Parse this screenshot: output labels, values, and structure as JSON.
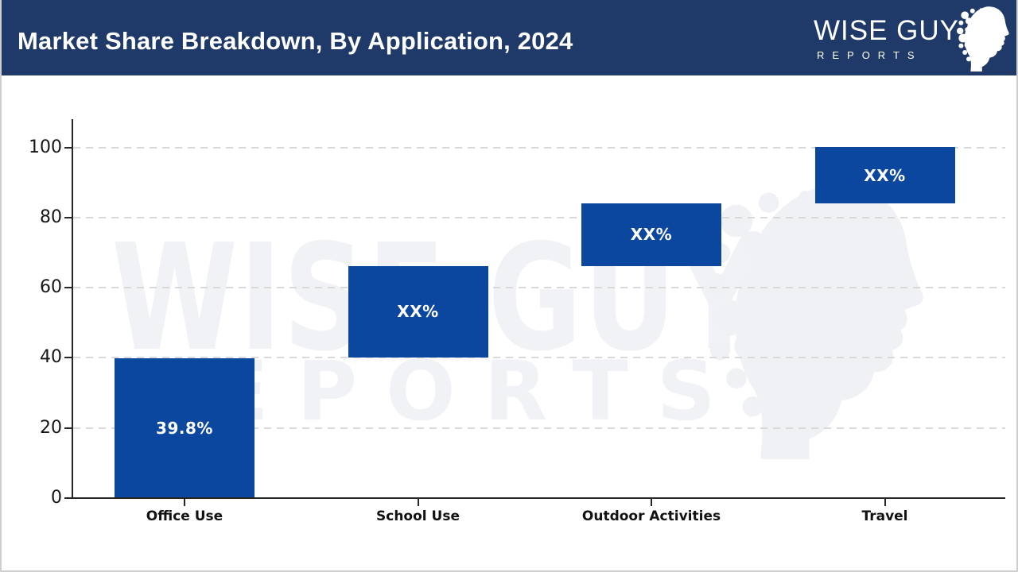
{
  "header": {
    "title": "Market Share Breakdown, By Application, 2024",
    "bg_color": "#1f3a68",
    "logo": {
      "line1": "WISE GUY",
      "line2": "REPORTS"
    }
  },
  "watermark": {
    "line1": "WISE GUY",
    "line2": "REPORTS"
  },
  "chart_data": {
    "type": "bar",
    "subtype": "waterfall-segment",
    "title": "Market Share Breakdown, By Application, 2024",
    "categories": [
      "Office Use",
      "School Use",
      "Outdoor Activities",
      "Travel"
    ],
    "series": [
      {
        "name": "Market Share",
        "segments": [
          {
            "category": "Office Use",
            "from": 0,
            "to": 39.8,
            "label": "39.8%"
          },
          {
            "category": "School Use",
            "from": 40.2,
            "to": 66.2,
            "label": "XX%"
          },
          {
            "category": "Outdoor Activities",
            "from": 66.2,
            "to": 84.0,
            "label": "XX%"
          },
          {
            "category": "Travel",
            "from": 84.0,
            "to": 100.1,
            "label": "XX%"
          }
        ]
      }
    ],
    "xlabel": "",
    "ylabel": "",
    "ylim": [
      0,
      100
    ],
    "yticks": [
      0,
      20,
      40,
      60,
      80,
      100
    ],
    "grid": "horizontal-dashed",
    "legend": "none",
    "bar_color": "#0c479f",
    "bar_label_color": "#ffffff",
    "axis_color": "#262626",
    "gridline_color": "#d9d9d9"
  }
}
